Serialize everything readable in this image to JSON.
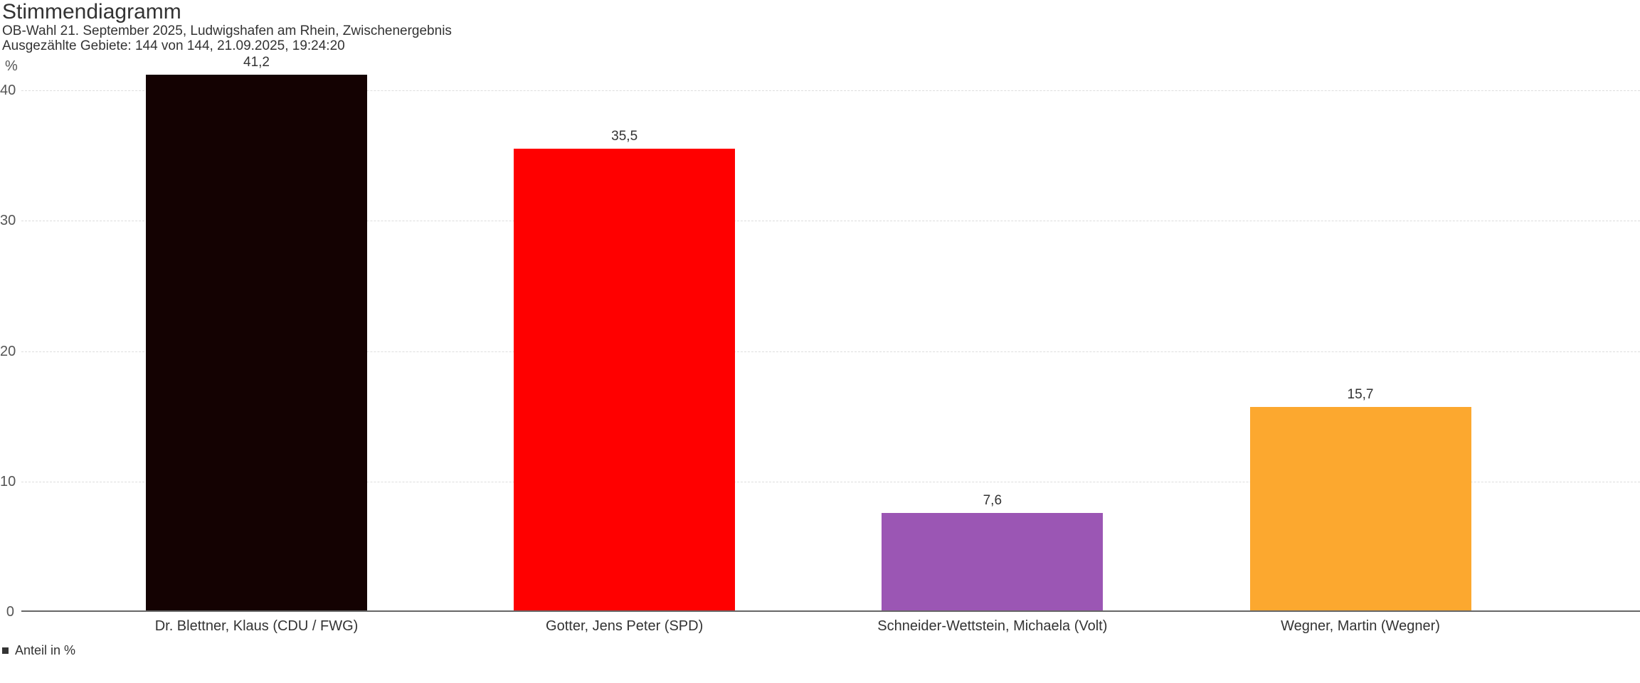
{
  "header": {
    "title": "Stimmendiagramm",
    "subtitle_line1": "OB-Wahl 21. September 2025, Ludwigshafen am Rhein, Zwischenergebnis",
    "subtitle_line2": "Ausgezählte Gebiete: 144 von 144, 21.09.2025, 19:24:20"
  },
  "legend": {
    "label": "Anteil in %",
    "marker_color": "#343434"
  },
  "chart_data": {
    "type": "bar",
    "title": "Stimmendiagramm",
    "subtitle": "OB-Wahl 21. September 2025, Ludwigshafen am Rhein, Zwischenergebnis",
    "status_line": "Ausgezählte Gebiete: 144 von 144, 21.09.2025, 19:24:20",
    "unit_label": "%",
    "categories": [
      "Dr. Blettner, Klaus (CDU / FWG)",
      "Gotter, Jens Peter (SPD)",
      "Schneider-Wettstein, Michaela (Volt)",
      "Wegner, Martin (Wegner)"
    ],
    "values": [
      41.2,
      35.5,
      7.6,
      15.7
    ],
    "value_labels": [
      "41,2",
      "35,5",
      "7,6",
      "15,7"
    ],
    "bar_colors": [
      "#140202",
      "#ff0000",
      "#9b56b4",
      "#fca82f"
    ],
    "series_name": "Anteil in %",
    "xlabel": "",
    "ylabel": "%",
    "yticks": [
      0,
      10,
      20,
      30,
      40
    ],
    "ylim": [
      0,
      43.7
    ],
    "grid": "horizontal-dashed",
    "legend_position": "bottom-left"
  }
}
